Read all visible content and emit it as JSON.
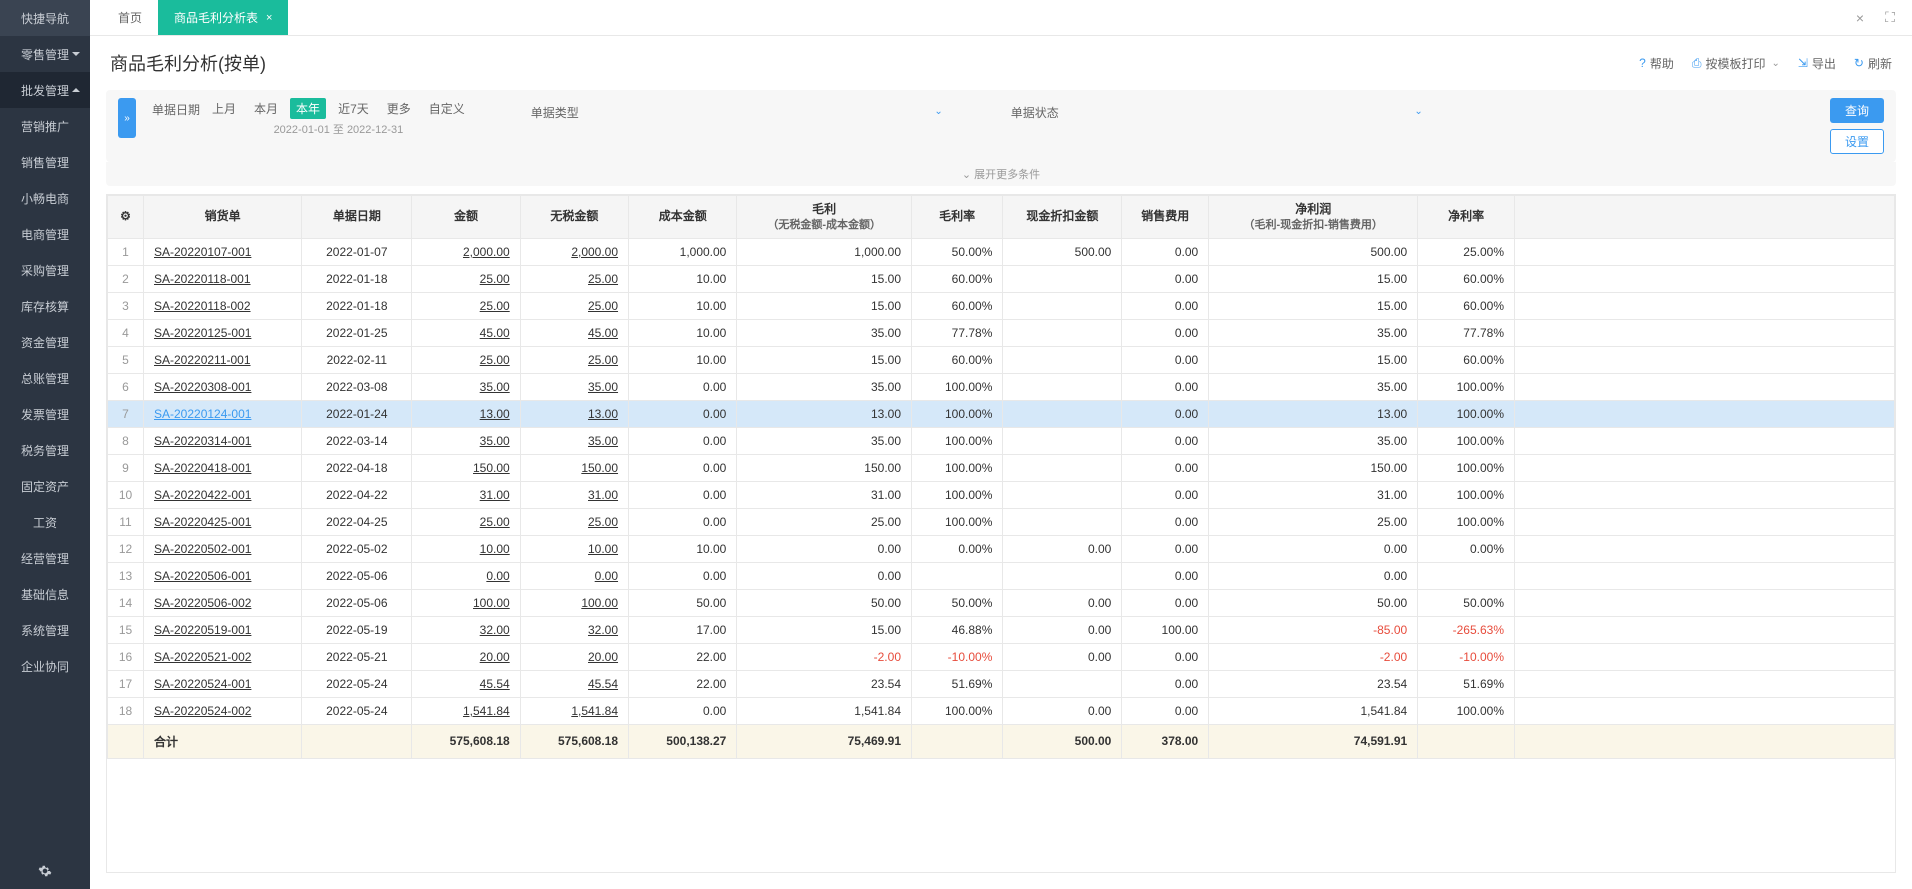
{
  "sidebar": {
    "items": [
      {
        "label": "快捷导航",
        "arrow": null
      },
      {
        "label": "零售管理",
        "arrow": "down"
      },
      {
        "label": "批发管理",
        "arrow": "up",
        "active": true
      },
      {
        "label": "营销推广",
        "sub": true
      },
      {
        "label": "销售管理",
        "sub": true
      },
      {
        "label": "小畅电商"
      },
      {
        "label": "电商管理"
      },
      {
        "label": "采购管理"
      },
      {
        "label": "库存核算"
      },
      {
        "label": "资金管理"
      },
      {
        "label": "总账管理"
      },
      {
        "label": "发票管理"
      },
      {
        "label": "税务管理"
      },
      {
        "label": "固定资产"
      },
      {
        "label": "工资"
      },
      {
        "label": "经营管理"
      },
      {
        "label": "基础信息"
      },
      {
        "label": "系统管理"
      },
      {
        "label": "企业协同"
      }
    ]
  },
  "tabs": {
    "home": "首页",
    "active": "商品毛利分析表"
  },
  "page": {
    "title": "商品毛利分析(按单)"
  },
  "actions": {
    "help": "帮助",
    "print": "按模板打印",
    "export": "导出",
    "refresh": "刷新"
  },
  "filter": {
    "date_label": "单据日期",
    "quick": [
      "上月",
      "本月",
      "本年",
      "近7天",
      "更多",
      "自定义"
    ],
    "active_quick": "本年",
    "date_range": "2022-01-01 至 2022-12-31",
    "type_label": "单据类型",
    "status_label": "单据状态",
    "query": "查询",
    "settings": "设置",
    "expand": "展开更多条件"
  },
  "table": {
    "columns": [
      "销货单",
      "单据日期",
      "金额",
      "无税金额",
      "成本金额",
      "毛利",
      "毛利_sub",
      "毛利率",
      "现金折扣金额",
      "销售费用",
      "净利润",
      "净利润_sub",
      "净利率"
    ],
    "headers": {
      "order": "销货单",
      "date": "单据日期",
      "amount": "金额",
      "notax": "无税金额",
      "cost": "成本金额",
      "gross": "毛利",
      "gross_sub": "（无税金额-成本金额）",
      "gross_rate": "毛利率",
      "discount": "现金折扣金额",
      "expense": "销售费用",
      "net": "净利润",
      "net_sub": "（毛利-现金折扣-销售费用）",
      "net_rate": "净利率"
    },
    "rows": [
      {
        "idx": 1,
        "order": "SA-20220107-001",
        "date": "2022-01-07",
        "amount": "2,000.00",
        "notax": "2,000.00",
        "cost": "1,000.00",
        "gross": "1,000.00",
        "gross_rate": "50.00%",
        "discount": "500.00",
        "expense": "0.00",
        "net": "500.00",
        "net_rate": "25.00%"
      },
      {
        "idx": 2,
        "order": "SA-20220118-001",
        "date": "2022-01-18",
        "amount": "25.00",
        "notax": "25.00",
        "cost": "10.00",
        "gross": "15.00",
        "gross_rate": "60.00%",
        "discount": "",
        "expense": "0.00",
        "net": "15.00",
        "net_rate": "60.00%"
      },
      {
        "idx": 3,
        "order": "SA-20220118-002",
        "date": "2022-01-18",
        "amount": "25.00",
        "notax": "25.00",
        "cost": "10.00",
        "gross": "15.00",
        "gross_rate": "60.00%",
        "discount": "",
        "expense": "0.00",
        "net": "15.00",
        "net_rate": "60.00%"
      },
      {
        "idx": 4,
        "order": "SA-20220125-001",
        "date": "2022-01-25",
        "amount": "45.00",
        "notax": "45.00",
        "cost": "10.00",
        "gross": "35.00",
        "gross_rate": "77.78%",
        "discount": "",
        "expense": "0.00",
        "net": "35.00",
        "net_rate": "77.78%"
      },
      {
        "idx": 5,
        "order": "SA-20220211-001",
        "date": "2022-02-11",
        "amount": "25.00",
        "notax": "25.00",
        "cost": "10.00",
        "gross": "15.00",
        "gross_rate": "60.00%",
        "discount": "",
        "expense": "0.00",
        "net": "15.00",
        "net_rate": "60.00%"
      },
      {
        "idx": 6,
        "order": "SA-20220308-001",
        "date": "2022-03-08",
        "amount": "35.00",
        "notax": "35.00",
        "cost": "0.00",
        "gross": "35.00",
        "gross_rate": "100.00%",
        "discount": "",
        "expense": "0.00",
        "net": "35.00",
        "net_rate": "100.00%"
      },
      {
        "idx": 7,
        "order": "SA-20220124-001",
        "date": "2022-01-24",
        "amount": "13.00",
        "notax": "13.00",
        "cost": "0.00",
        "gross": "13.00",
        "gross_rate": "100.00%",
        "discount": "",
        "expense": "0.00",
        "net": "13.00",
        "net_rate": "100.00%",
        "highlight": true
      },
      {
        "idx": 8,
        "order": "SA-20220314-001",
        "date": "2022-03-14",
        "amount": "35.00",
        "notax": "35.00",
        "cost": "0.00",
        "gross": "35.00",
        "gross_rate": "100.00%",
        "discount": "",
        "expense": "0.00",
        "net": "35.00",
        "net_rate": "100.00%"
      },
      {
        "idx": 9,
        "order": "SA-20220418-001",
        "date": "2022-04-18",
        "amount": "150.00",
        "notax": "150.00",
        "cost": "0.00",
        "gross": "150.00",
        "gross_rate": "100.00%",
        "discount": "",
        "expense": "0.00",
        "net": "150.00",
        "net_rate": "100.00%"
      },
      {
        "idx": 10,
        "order": "SA-20220422-001",
        "date": "2022-04-22",
        "amount": "31.00",
        "notax": "31.00",
        "cost": "0.00",
        "gross": "31.00",
        "gross_rate": "100.00%",
        "discount": "",
        "expense": "0.00",
        "net": "31.00",
        "net_rate": "100.00%"
      },
      {
        "idx": 11,
        "order": "SA-20220425-001",
        "date": "2022-04-25",
        "amount": "25.00",
        "notax": "25.00",
        "cost": "0.00",
        "gross": "25.00",
        "gross_rate": "100.00%",
        "discount": "",
        "expense": "0.00",
        "net": "25.00",
        "net_rate": "100.00%"
      },
      {
        "idx": 12,
        "order": "SA-20220502-001",
        "date": "2022-05-02",
        "amount": "10.00",
        "notax": "10.00",
        "cost": "10.00",
        "gross": "0.00",
        "gross_rate": "0.00%",
        "discount": "0.00",
        "expense": "0.00",
        "net": "0.00",
        "net_rate": "0.00%"
      },
      {
        "idx": 13,
        "order": "SA-20220506-001",
        "date": "2022-05-06",
        "amount": "0.00",
        "notax": "0.00",
        "cost": "0.00",
        "gross": "0.00",
        "gross_rate": "",
        "discount": "",
        "expense": "0.00",
        "net": "0.00",
        "net_rate": ""
      },
      {
        "idx": 14,
        "order": "SA-20220506-002",
        "date": "2022-05-06",
        "amount": "100.00",
        "notax": "100.00",
        "cost": "50.00",
        "gross": "50.00",
        "gross_rate": "50.00%",
        "discount": "0.00",
        "expense": "0.00",
        "net": "50.00",
        "net_rate": "50.00%"
      },
      {
        "idx": 15,
        "order": "SA-20220519-001",
        "date": "2022-05-19",
        "amount": "32.00",
        "notax": "32.00",
        "cost": "17.00",
        "gross": "15.00",
        "gross_rate": "46.88%",
        "discount": "0.00",
        "expense": "100.00",
        "net": "-85.00",
        "net_rate": "-265.63%",
        "net_neg": true
      },
      {
        "idx": 16,
        "order": "SA-20220521-002",
        "date": "2022-05-21",
        "amount": "20.00",
        "notax": "20.00",
        "cost": "22.00",
        "gross": "-2.00",
        "gross_rate": "-10.00%",
        "gross_neg": true,
        "discount": "0.00",
        "expense": "0.00",
        "net": "-2.00",
        "net_rate": "-10.00%",
        "net_neg": true
      },
      {
        "idx": 17,
        "order": "SA-20220524-001",
        "date": "2022-05-24",
        "amount": "45.54",
        "notax": "45.54",
        "cost": "22.00",
        "gross": "23.54",
        "gross_rate": "51.69%",
        "discount": "",
        "expense": "0.00",
        "net": "23.54",
        "net_rate": "51.69%"
      },
      {
        "idx": 18,
        "order": "SA-20220524-002",
        "date": "2022-05-24",
        "amount": "1,541.84",
        "notax": "1,541.84",
        "cost": "0.00",
        "gross": "1,541.84",
        "gross_rate": "100.00%",
        "discount": "0.00",
        "expense": "0.00",
        "net": "1,541.84",
        "net_rate": "100.00%"
      }
    ],
    "footer": {
      "label": "合计",
      "amount": "575,608.18",
      "notax": "575,608.18",
      "cost": "500,138.27",
      "gross": "75,469.91",
      "discount": "500.00",
      "expense": "378.00",
      "net": "74,591.91"
    }
  }
}
